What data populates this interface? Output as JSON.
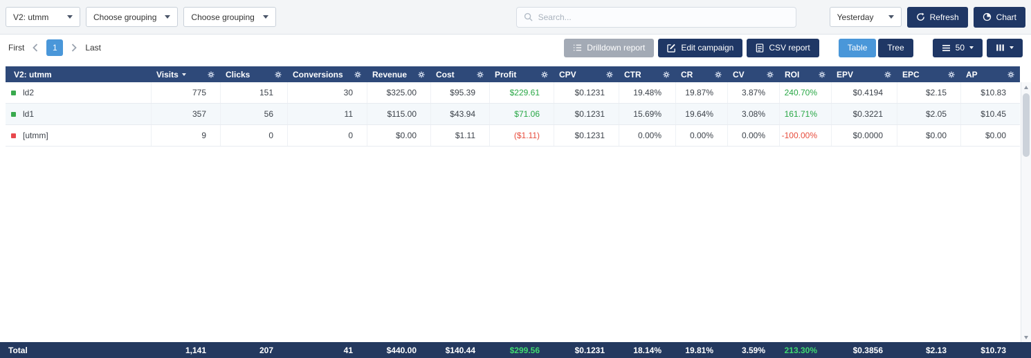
{
  "colors": {
    "navy_button": "#1f3765",
    "header_navy": "#2e4979",
    "footer_navy": "#24395f",
    "active_blue": "#4a97d9",
    "positive_green": "#28a745",
    "negative_red": "#e74c3c",
    "disabled_gray": "#a3aab5",
    "status_green": "#3aaa4e",
    "status_red": "#e8484d"
  },
  "icons": {
    "search": "magnifier",
    "refresh": "circular-arrow",
    "chart": "pie-chart",
    "drilldown": "list",
    "edit_campaign": "pencil-square",
    "csv_report": "document",
    "rows_per_page": "hamburger",
    "columns": "column-bars",
    "column_settings": "gear",
    "sort": "caret-down"
  },
  "toolbar": {
    "campaign_filter": "V2: utmm",
    "grouping_1": "Choose grouping",
    "grouping_2": "Choose grouping",
    "search_placeholder": "Search...",
    "date_range": "Yesterday",
    "refresh": "Refresh",
    "chart": "Chart"
  },
  "pagination": {
    "first": "First",
    "current_page": "1",
    "last": "Last"
  },
  "actions": {
    "drilldown": "Drilldown report",
    "edit_campaign": "Edit campaign",
    "csv_report": "CSV report",
    "view_table": "Table",
    "view_tree": "Tree",
    "page_size": "50"
  },
  "table": {
    "group_column": "V2: utmm",
    "sorted_column": "Visits",
    "columns": [
      "Visits",
      "Clicks",
      "Conversions",
      "Revenue",
      "Cost",
      "Profit",
      "CPV",
      "CTR",
      "CR",
      "CV",
      "ROI",
      "EPV",
      "EPC",
      "AP"
    ],
    "rows": [
      {
        "status": "green",
        "name": "ld2",
        "cells": [
          "775",
          "151",
          "30",
          "$325.00",
          "$95.39",
          "$229.61",
          "$0.1231",
          "19.48%",
          "19.87%",
          "3.87%",
          "240.70%",
          "$0.4194",
          "$2.15",
          "$10.83"
        ]
      },
      {
        "status": "green",
        "name": "ld1",
        "cells": [
          "357",
          "56",
          "11",
          "$115.00",
          "$43.94",
          "$71.06",
          "$0.1231",
          "15.69%",
          "19.64%",
          "3.08%",
          "161.71%",
          "$0.3221",
          "$2.05",
          "$10.45"
        ]
      },
      {
        "status": "red",
        "name": "[utmm]",
        "cells": [
          "9",
          "0",
          "0",
          "$0.00",
          "$1.11",
          "($1.11)",
          "$0.1231",
          "0.00%",
          "0.00%",
          "0.00%",
          "-100.00%",
          "$0.0000",
          "$0.00",
          "$0.00"
        ]
      }
    ],
    "total": {
      "label": "Total",
      "cells": [
        "1,141",
        "207",
        "41",
        "$440.00",
        "$140.44",
        "$299.56",
        "$0.1231",
        "18.14%",
        "19.81%",
        "3.59%",
        "213.30%",
        "$0.3856",
        "$2.13",
        "$10.73"
      ]
    }
  }
}
